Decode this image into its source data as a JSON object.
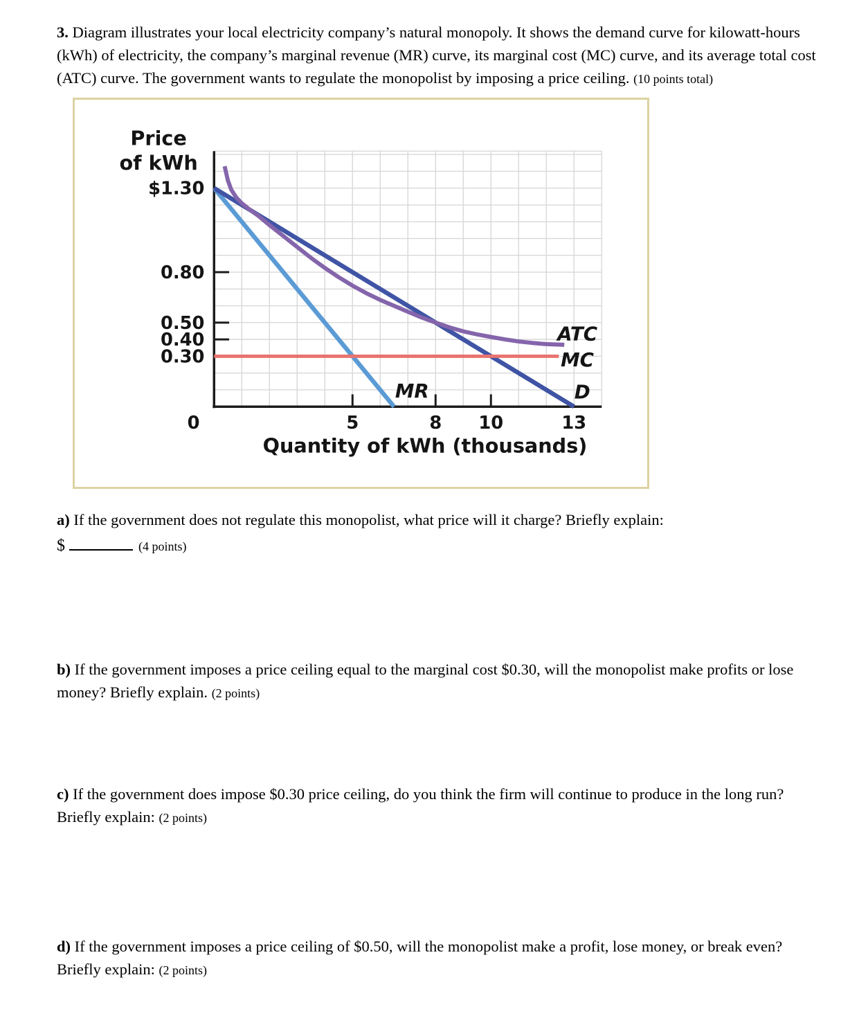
{
  "intro": {
    "number": "3.",
    "text": "Diagram illustrates your local electricity company’s natural monopoly. It shows the demand curve for kilowatt-hours (kWh) of electricity, the company’s marginal revenue (MR) curve, its marginal cost (MC) curve, and its average total cost (ATC) curve. The government wants to regulate the monopolist by imposing a price ceiling.",
    "points": "(10 points total)"
  },
  "chart_data": {
    "type": "line",
    "title": "",
    "ylabel_lines": [
      "Price",
      "of kWh"
    ],
    "xlabel": "Quantity of kWh (thousands)",
    "xlim": [
      0,
      14
    ],
    "ylim": [
      0,
      1.52
    ],
    "grid": true,
    "grid_step_x": 1,
    "grid_step_y": 0.1,
    "x_ticks": [
      {
        "v": 0,
        "label": "0"
      },
      {
        "v": 5,
        "label": "5"
      },
      {
        "v": 8,
        "label": "8"
      },
      {
        "v": 10,
        "label": "10"
      },
      {
        "v": 13,
        "label": "13"
      }
    ],
    "x_tick_marks": [
      5,
      8,
      10
    ],
    "y_ticks": [
      {
        "v": 1.3,
        "label": "$1.30"
      },
      {
        "v": 0.8,
        "label": "0.80"
      },
      {
        "v": 0.5,
        "label": "0.50"
      },
      {
        "v": 0.4,
        "label": "0.40"
      },
      {
        "v": 0.3,
        "label": "0.30"
      }
    ],
    "y_tick_marks": [
      0.8,
      0.5,
      0.4
    ],
    "colors": {
      "grid": "#d8d8d8",
      "axis": "#1c1c1c",
      "frame": "#ddd2a2"
    },
    "series": [
      {
        "name": "MR",
        "color": "#5b9bd5",
        "width": 6.5,
        "points": [
          [
            0,
            1.3
          ],
          [
            6.5,
            0
          ]
        ],
        "label": "MR",
        "label_pos": [
          7.15,
          0.095
        ]
      },
      {
        "name": "D",
        "color": "#4054a5",
        "width": 6.5,
        "points": [
          [
            0,
            1.3
          ],
          [
            13,
            0
          ]
        ],
        "label": "D",
        "label_pos": [
          13.3,
          0.09
        ]
      },
      {
        "name": "MC",
        "color": "#e8736e",
        "width": 5,
        "points": [
          [
            0,
            0.3
          ],
          [
            12.45,
            0.3
          ]
        ],
        "label": "MC",
        "label_pos": [
          13.12,
          0.28
        ]
      },
      {
        "name": "ATC",
        "color": "#8465ab",
        "width": 6,
        "points": [
          [
            0.38,
            1.43
          ],
          [
            0.5,
            1.345
          ],
          [
            0.62,
            1.29
          ],
          [
            0.8,
            1.245
          ],
          [
            1.0,
            1.21
          ],
          [
            1.3,
            1.17
          ],
          [
            1.6,
            1.135
          ],
          [
            2,
            1.08
          ],
          [
            2.5,
            1.015
          ],
          [
            3,
            0.95
          ],
          [
            3.5,
            0.885
          ],
          [
            4,
            0.825
          ],
          [
            4.5,
            0.77
          ],
          [
            5,
            0.72
          ],
          [
            5.5,
            0.675
          ],
          [
            6,
            0.635
          ],
          [
            6.5,
            0.6
          ],
          [
            7,
            0.565
          ],
          [
            7.5,
            0.53
          ],
          [
            8,
            0.5
          ],
          [
            8.5,
            0.472
          ],
          [
            9,
            0.448
          ],
          [
            9.5,
            0.43
          ],
          [
            10,
            0.415
          ],
          [
            10.5,
            0.4
          ],
          [
            11,
            0.388
          ],
          [
            11.5,
            0.379
          ],
          [
            12,
            0.372
          ],
          [
            12.65,
            0.368
          ]
        ],
        "label": "ATC",
        "label_pos": [
          13.12,
          0.435
        ]
      }
    ],
    "key_points": {
      "monopoly_quantity": 5,
      "monopoly_price": 0.8,
      "mc_price": 0.3,
      "atc_demand_intersection": {
        "q": 8,
        "p": 0.5
      },
      "demand_price_intercept": 1.3,
      "demand_quantity_intercept": 13,
      "mr_zero_quantity": 6.5
    }
  },
  "questions": [
    {
      "label": "a)",
      "text": "If the government does not regulate this monopolist, what price will it charge? Briefly explain:",
      "answer_prefix": "$",
      "points": "(4 points)"
    },
    {
      "label": "b)",
      "text": "If the government imposes a price ceiling equal to the marginal cost $0.30, will the monopolist make profits or lose money? Briefly explain.",
      "points": "(2 points)"
    },
    {
      "label": "c)",
      "text": "If the government does impose $0.30 price ceiling, do you think the firm will continue to produce in the long run? Briefly explain:",
      "points": "(2 points)"
    },
    {
      "label": "d)",
      "text": "If the government imposes a price ceiling of $0.50, will the monopolist make a profit, lose money, or break even? Briefly explain:",
      "points": "(2 points)"
    }
  ]
}
